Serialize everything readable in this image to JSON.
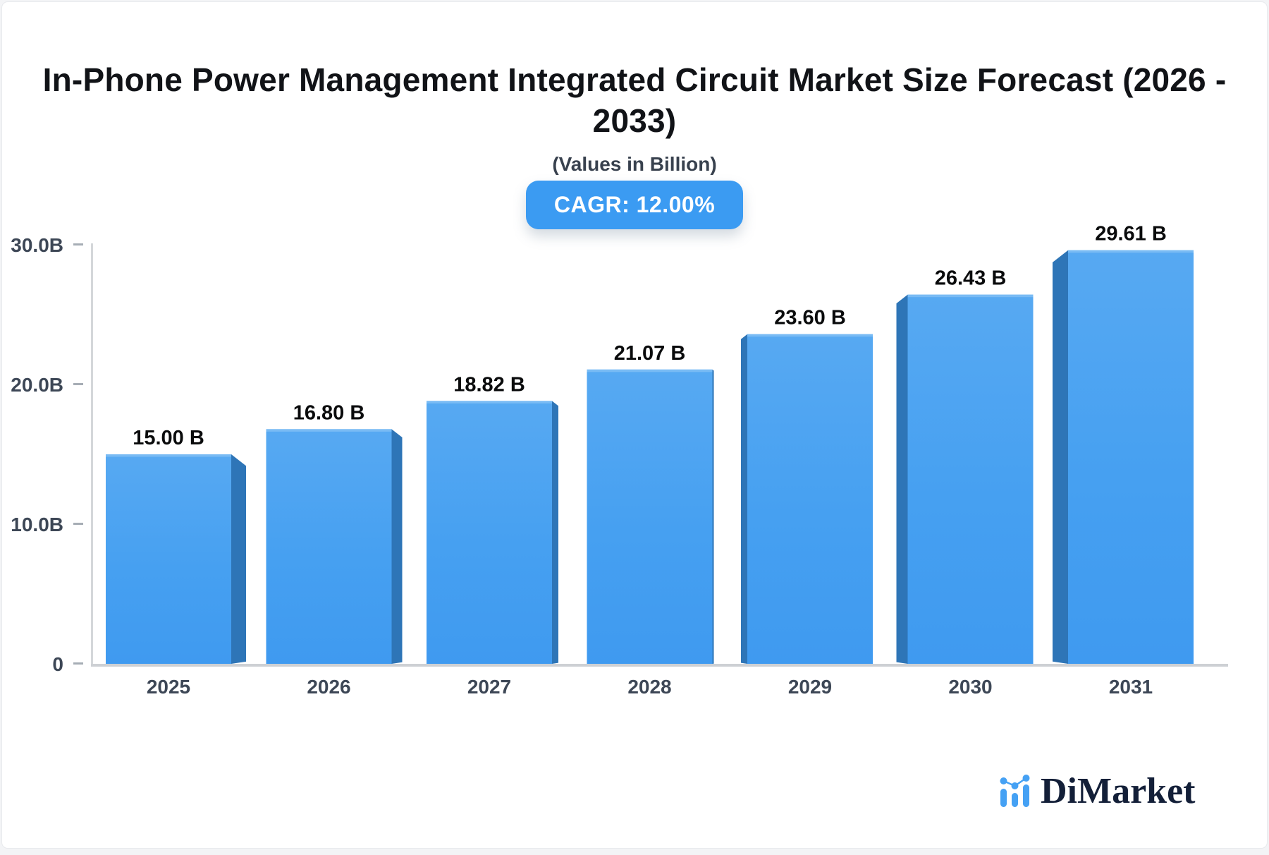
{
  "chart_data": {
    "type": "bar",
    "title": "In-Phone Power Management Integrated Circuit Market Size Forecast (2026 - 2033)",
    "title_lines": [
      "In-Phone Power Management Integrated Circuit Market Size Forecast (2026 -",
      "2033)"
    ],
    "subtitle": "(Values in Billion)",
    "badge_label": "CAGR: 12.00%",
    "categories": [
      "2025",
      "2026",
      "2027",
      "2028",
      "2029",
      "2030",
      "2031"
    ],
    "values": [
      15.0,
      16.8,
      18.82,
      21.07,
      23.6,
      26.43,
      29.61
    ],
    "value_labels": [
      "15.00 B",
      "16.80 B",
      "18.82 B",
      "21.07 B",
      "23.60 B",
      "26.43 B",
      "29.61 B"
    ],
    "unit": "Billion",
    "xlabel": "",
    "ylabel": "",
    "ylim": [
      0,
      30
    ],
    "yticks": [
      {
        "v": 0,
        "label": "0"
      },
      {
        "v": 10,
        "label": "10.0B"
      },
      {
        "v": 20,
        "label": "20.0B"
      },
      {
        "v": 30,
        "label": "30.0B"
      }
    ],
    "grid": false,
    "legend": false,
    "effect": "3d-column",
    "colors": {
      "bar_face_top": "#57A9F2",
      "bar_face_bottom": "#3F9AF0",
      "bar_side": "#2E75B7",
      "bar_top_edge": "#79BBF4",
      "axis_line": "#CDD0D4",
      "tick_dash": "#A6ADB5",
      "axis_text": "#3D4756",
      "value_label": "#0A0B0C",
      "badge_bg": "#3B9BF2",
      "badge_text": "#FFFFFF"
    }
  },
  "brand": {
    "name": "DiMarket",
    "icon": "bar-line-chart-icon",
    "icon_color": "#45A1F4",
    "text_color": "#131F38"
  }
}
